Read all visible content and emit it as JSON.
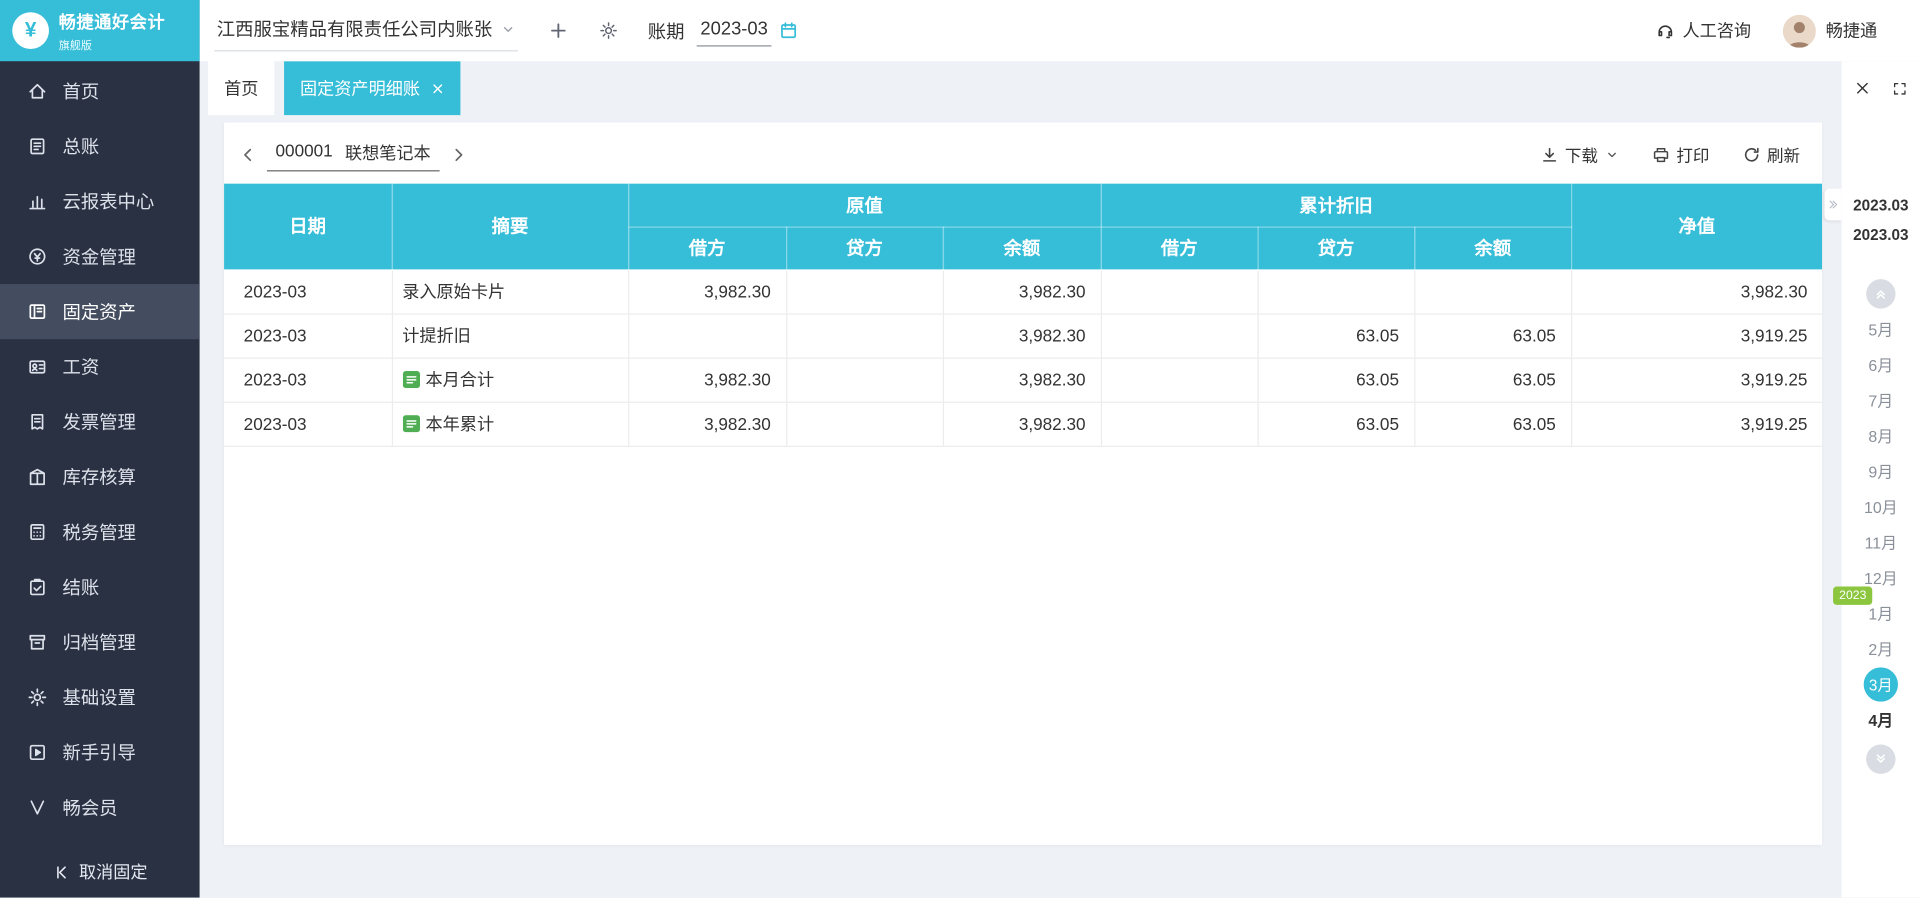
{
  "colors": {
    "accent": "#36bdd8",
    "sidebar_bg": "#2a3143",
    "sidebar_active": "#444c5f",
    "page_bg": "#eef1f6",
    "badge_green": "#8cc63f",
    "summary_green": "#4fae54"
  },
  "logo": {
    "title": "畅捷通好会计",
    "subtitle": "旗舰版"
  },
  "sidebar": {
    "items": [
      {
        "id": "home",
        "icon": "home-icon",
        "label": "首页"
      },
      {
        "id": "general-ledger",
        "icon": "ledger-icon",
        "label": "总账"
      },
      {
        "id": "cloud-report-center",
        "icon": "report-icon",
        "label": "云报表中心"
      },
      {
        "id": "funds",
        "icon": "fund-icon",
        "label": "资金管理"
      },
      {
        "id": "fixed-assets",
        "icon": "asset-icon",
        "label": "固定资产",
        "active": true
      },
      {
        "id": "payroll",
        "icon": "salary-icon",
        "label": "工资"
      },
      {
        "id": "invoice",
        "icon": "invoice-icon",
        "label": "发票管理"
      },
      {
        "id": "inventory",
        "icon": "inventory-icon",
        "label": "库存核算"
      },
      {
        "id": "tax",
        "icon": "tax-icon",
        "label": "税务管理"
      },
      {
        "id": "closing",
        "icon": "closing-icon",
        "label": "结账"
      },
      {
        "id": "archive",
        "icon": "archive-icon",
        "label": "归档管理"
      },
      {
        "id": "settings",
        "icon": "settings-icon",
        "label": "基础设置"
      },
      {
        "id": "guide",
        "icon": "guide-icon",
        "label": "新手引导"
      },
      {
        "id": "member",
        "icon": "member-icon",
        "label": "畅会员"
      }
    ],
    "unpin_label": "取消固定"
  },
  "topbar": {
    "company": "江西服宝精品有限责任公司内账张",
    "period_label": "账期",
    "period_value": "2023-03",
    "support_label": "人工咨询",
    "user_name": "畅捷通"
  },
  "tabs": [
    {
      "id": "home",
      "label": "首页"
    },
    {
      "id": "fixed-asset-detail-ledger",
      "label": "固定资产明细账",
      "active": true,
      "closable": true
    }
  ],
  "toolbar": {
    "asset_code": "000001",
    "asset_name": "联想笔记本",
    "download_label": "下载",
    "print_label": "打印",
    "refresh_label": "刷新"
  },
  "table": {
    "header": {
      "date": "日期",
      "summary": "摘要",
      "original_value": "原值",
      "accumulated_depreciation": "累计折旧",
      "net_value": "净值",
      "debit": "借方",
      "credit": "贷方",
      "balance": "余额"
    },
    "rows": [
      {
        "date": "2023-03",
        "summary": "录入原始卡片",
        "has_icon": false,
        "cells": [
          "3,982.30",
          "",
          "3,982.30",
          "",
          "",
          "",
          "3,982.30"
        ]
      },
      {
        "date": "2023-03",
        "summary": "计提折旧",
        "has_icon": false,
        "cells": [
          "",
          "",
          "3,982.30",
          "",
          "63.05",
          "63.05",
          "3,919.25"
        ]
      },
      {
        "date": "2023-03",
        "summary": "本月合计",
        "has_icon": true,
        "cells": [
          "3,982.30",
          "",
          "3,982.30",
          "",
          "63.05",
          "63.05",
          "3,919.25"
        ]
      },
      {
        "date": "2023-03",
        "summary": "本年累计",
        "has_icon": true,
        "cells": [
          "3,982.30",
          "",
          "3,982.30",
          "",
          "63.05",
          "63.05",
          "3,919.25"
        ]
      }
    ]
  },
  "timeline": {
    "period_start": "2023.03",
    "period_end": "2023.03",
    "months": [
      "5月",
      "6月",
      "7月",
      "8月",
      "9月",
      "10月",
      "11月",
      "12月",
      "1月",
      "2月",
      "3月",
      "4月"
    ],
    "active_month": "3月",
    "bold_month": "4月",
    "year_badge": "2023",
    "badge_after_index": 7
  }
}
